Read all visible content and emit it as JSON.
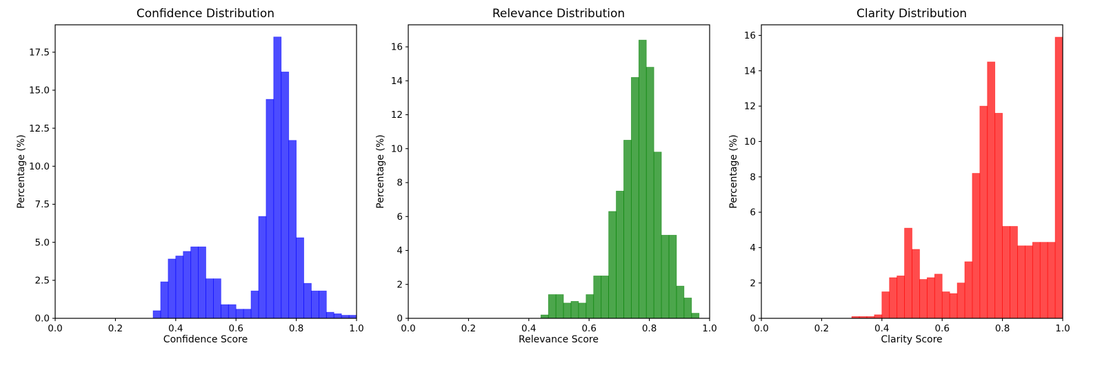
{
  "figure": {
    "background": "#ffffff",
    "text_color": "#000000"
  },
  "chart_data": [
    {
      "type": "bar",
      "subtype": "histogram",
      "title": "Confidence Distribution",
      "xlabel": "Confidence Score",
      "ylabel": "Percentage (%)",
      "color": "#0000ff",
      "bar_alpha": 0.7,
      "grid": false,
      "legend": "none",
      "xlim": [
        0.0,
        1.0
      ],
      "ylim": [
        0,
        19.3
      ],
      "x_ticks": {
        "values": [
          0.0,
          0.2,
          0.4,
          0.6,
          0.8,
          1.0
        ],
        "labels": [
          "0.0",
          "0.2",
          "0.4",
          "0.6",
          "0.8",
          "1.0"
        ]
      },
      "y_ticks": {
        "values": [
          0,
          2.5,
          5,
          7.5,
          10,
          12.5,
          15,
          17.5
        ],
        "labels": [
          "0.0",
          "2.5",
          "5.0",
          "7.5",
          "10.0",
          "12.5",
          "15.0",
          "17.5"
        ]
      },
      "bin_start": 0.325,
      "bin_width": 0.025,
      "values": [
        0.5,
        2.4,
        3.9,
        4.1,
        4.4,
        4.7,
        4.7,
        2.6,
        2.6,
        0.9,
        0.9,
        0.6,
        0.6,
        1.8,
        6.7,
        14.4,
        18.5,
        16.2,
        11.7,
        5.3,
        2.3,
        1.8,
        1.8,
        0.4,
        0.3,
        0.2,
        0.2
      ]
    },
    {
      "type": "bar",
      "subtype": "histogram",
      "title": "Relevance Distribution",
      "xlabel": "Relevance Score",
      "ylabel": "Percentage (%)",
      "color": "#008000",
      "bar_alpha": 0.7,
      "grid": false,
      "legend": "none",
      "xlim": [
        0.0,
        1.0
      ],
      "ylim": [
        0,
        17.3
      ],
      "x_ticks": {
        "values": [
          0.0,
          0.2,
          0.4,
          0.6,
          0.8,
          1.0
        ],
        "labels": [
          "0.0",
          "0.2",
          "0.4",
          "0.6",
          "0.8",
          "1.0"
        ]
      },
      "y_ticks": {
        "values": [
          0,
          2,
          4,
          6,
          8,
          10,
          12,
          14,
          16
        ],
        "labels": [
          "0",
          "2",
          "4",
          "6",
          "8",
          "10",
          "12",
          "14",
          "16"
        ]
      },
      "bin_start": 0.44,
      "bin_width": 0.025,
      "values": [
        0.2,
        1.4,
        1.4,
        0.9,
        1.0,
        0.9,
        1.4,
        2.5,
        2.5,
        6.3,
        7.5,
        10.5,
        14.2,
        16.4,
        14.8,
        9.8,
        4.9,
        4.9,
        1.9,
        1.2,
        0.3
      ]
    },
    {
      "type": "bar",
      "subtype": "histogram",
      "title": "Clarity Distribution",
      "xlabel": "Clarity Score",
      "ylabel": "Percentage (%)",
      "color": "#ff0000",
      "bar_alpha": 0.7,
      "grid": false,
      "legend": "none",
      "xlim": [
        0.0,
        1.0
      ],
      "ylim": [
        0,
        16.6
      ],
      "x_ticks": {
        "values": [
          0.0,
          0.2,
          0.4,
          0.6,
          0.8,
          1.0
        ],
        "labels": [
          "0.0",
          "0.2",
          "0.4",
          "0.6",
          "0.8",
          "1.0"
        ]
      },
      "y_ticks": {
        "values": [
          0,
          2,
          4,
          6,
          8,
          10,
          12,
          14,
          16
        ],
        "labels": [
          "0",
          "2",
          "4",
          "6",
          "8",
          "10",
          "12",
          "14",
          "16"
        ]
      },
      "bin_start": 0.3,
      "bin_width": 0.025,
      "values": [
        0.1,
        0.1,
        0.1,
        0.2,
        1.5,
        2.3,
        2.4,
        5.1,
        3.9,
        2.2,
        2.3,
        2.5,
        1.5,
        1.4,
        2.0,
        3.2,
        8.2,
        12.0,
        14.5,
        11.6,
        5.2,
        5.2,
        4.1,
        4.1,
        4.3,
        4.3,
        4.3,
        15.9
      ]
    }
  ]
}
